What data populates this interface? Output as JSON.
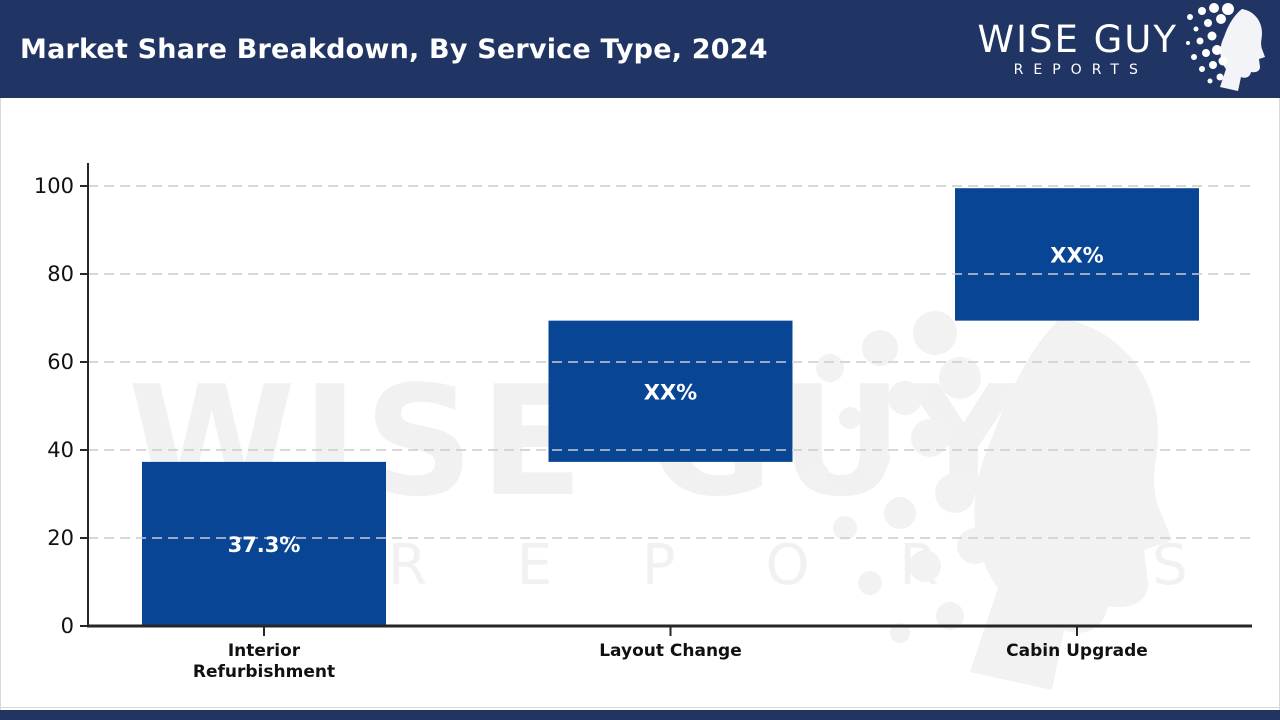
{
  "header": {
    "title": "Market Share Breakdown, By Service Type, 2024",
    "logo": {
      "line1": "WISE GUY",
      "line2": "REPORTS"
    }
  },
  "watermark": {
    "line1": "WISE GUY",
    "line2": "R E P O R T S"
  },
  "colors": {
    "header_bg": "#213564",
    "bar": "#084595",
    "axis": "#262626",
    "gridline": "#cccccc",
    "tick_text": "#111111",
    "bar_label_text": "#ffffff",
    "footer_bg": "#213564"
  },
  "chart_data": {
    "type": "bar",
    "subtype": "floating-waterfall",
    "title": "Market Share Breakdown, By Service Type, 2024",
    "categories": [
      "Interior Refurbishment",
      "Layout Change",
      "Cabin Upgrade"
    ],
    "categories_wrapped": [
      [
        "Interior",
        "Refurbishment"
      ],
      [
        "Layout Change"
      ],
      [
        "Cabin Upgrade"
      ]
    ],
    "segments": [
      {
        "category": "Interior Refurbishment",
        "start": 0,
        "end": 37.3,
        "label": "37.3%"
      },
      {
        "category": "Layout Change",
        "start": 37.3,
        "end": 69.4,
        "label": "XX%"
      },
      {
        "category": "Cabin Upgrade",
        "start": 69.4,
        "end": 99.5,
        "label": "XX%"
      }
    ],
    "xlabel": "",
    "ylabel": "",
    "ylim": [
      0,
      105
    ],
    "yticks": [
      0,
      20,
      40,
      60,
      80,
      100
    ],
    "grid": "horizontal-dashed",
    "legend": "none"
  }
}
